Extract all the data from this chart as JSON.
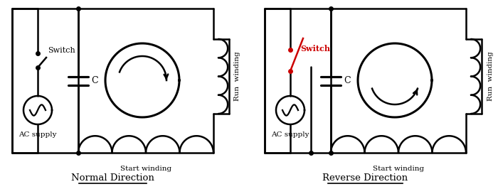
{
  "bg_color": "#ffffff",
  "line_color": "#000000",
  "red_color": "#cc0000",
  "lw": 1.8,
  "lw_thick": 2.5,
  "title_normal": "Normal Direction",
  "title_reverse": "Reverse Direction",
  "label_switch": "Switch",
  "label_ac": "AC supply",
  "label_start": "Start winding",
  "label_run": "Run  winding",
  "label_C": "C",
  "figsize": [
    7.0,
    2.73
  ],
  "dpi": 100
}
